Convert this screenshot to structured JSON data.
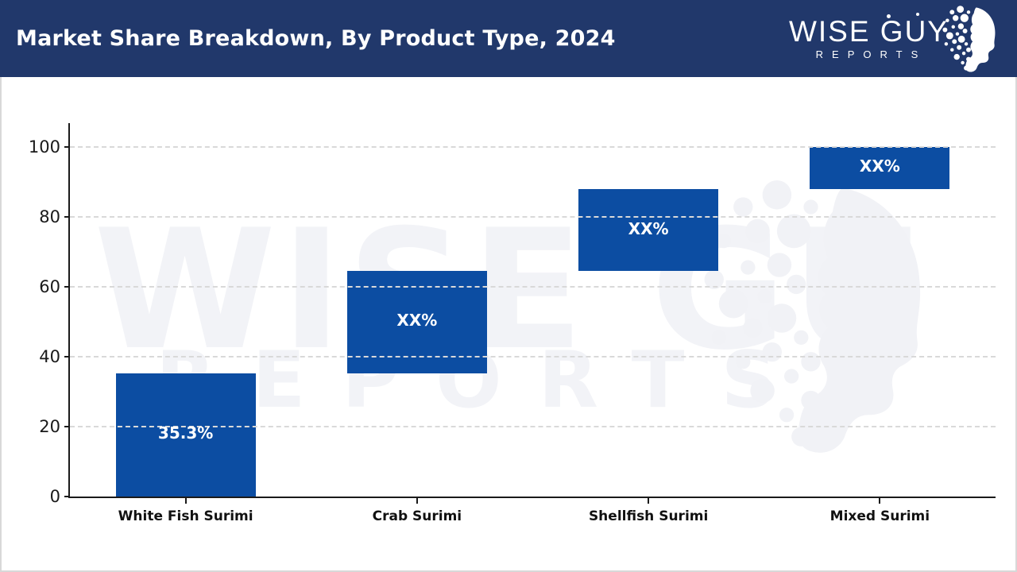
{
  "header": {
    "title": "Market Share Breakdown, By Product Type, 2024",
    "bg_color": "#21386b",
    "logo": {
      "line1": "WISE GUY",
      "line2": "REPORTS"
    }
  },
  "watermark": {
    "line1": "WISE GU",
    "line2": "REPORTS"
  },
  "chart_data": {
    "type": "bar",
    "subtype": "waterfall-floating-segments",
    "title": "Market Share Breakdown, By Product Type, 2024",
    "categories": [
      "White Fish Surimi",
      "Crab Surimi",
      "Shellfish Surimi",
      "Mixed Surimi"
    ],
    "segments": [
      {
        "category": "White Fish Surimi",
        "start": 0,
        "end": 35.3,
        "label": "35.3%"
      },
      {
        "category": "Crab Surimi",
        "start": 35.3,
        "end": 64.5,
        "label": "XX%"
      },
      {
        "category": "Shellfish Surimi",
        "start": 64.5,
        "end": 88,
        "label": "XX%"
      },
      {
        "category": "Mixed Surimi",
        "start": 88,
        "end": 100,
        "label": "XX%"
      }
    ],
    "xlabel": "",
    "ylabel": "",
    "y_ticks": [
      0,
      20,
      40,
      60,
      80,
      100
    ],
    "ylim": [
      0,
      106.8
    ],
    "grid": "horizontal-dashed",
    "legend": "none",
    "bar_color": "#0c4da2",
    "bar_label_color": "#ffffff",
    "axis_color": "#1a1a1a",
    "gridline_color": "#d9d9d9"
  }
}
